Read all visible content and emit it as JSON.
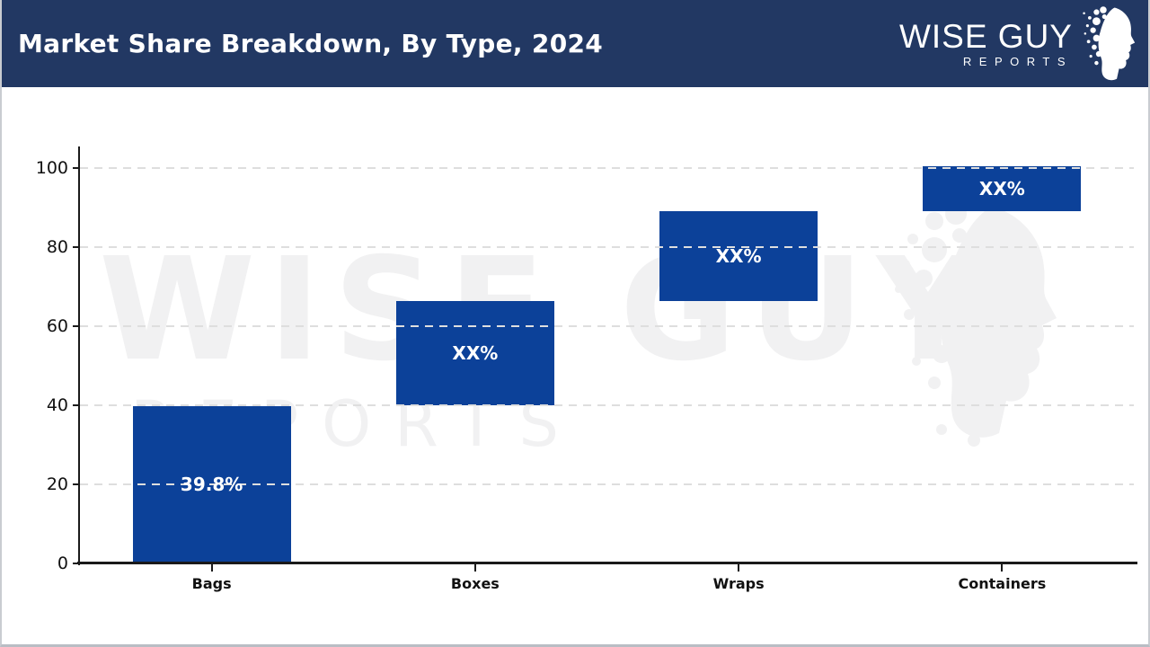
{
  "header": {
    "background": "#223863",
    "title": "Market Share Breakdown, By Type, 2024",
    "logo": {
      "brand_line1": "WISE GUY",
      "brand_line2": "REPORTS"
    }
  },
  "watermark": {
    "line1": "WISE GUY",
    "line2": "REPORTS",
    "color": "#f1f1f2"
  },
  "icons": {
    "logo_head": "wiseguy-dotted-head",
    "watermark_head": "wiseguy-dotted-head"
  },
  "chart_data": {
    "type": "bar",
    "variant": "waterfall",
    "title": "Market Share Breakdown, By Type, 2024",
    "categories": [
      "Bags",
      "Boxes",
      "Wraps",
      "Containers"
    ],
    "series": [
      {
        "name": "Market share (%)",
        "segments": [
          {
            "category": "Bags",
            "start": 0,
            "end": 39.8,
            "label": "39.8%"
          },
          {
            "category": "Boxes",
            "start": 40,
            "end": 66.4,
            "label": "XX%"
          },
          {
            "category": "Wraps",
            "start": 66.4,
            "end": 89.1,
            "label": "XX%"
          },
          {
            "category": "Containers",
            "start": 89.1,
            "end": 100.4,
            "label": "XX%"
          }
        ]
      }
    ],
    "xlabel": "",
    "ylabel": "",
    "yticks": [
      0,
      20,
      40,
      60,
      80,
      100
    ],
    "ylim": [
      0,
      105.5
    ],
    "grid": "horizontal-dashed-above-bars",
    "legend": "none",
    "bar_color": "#0c4199",
    "bar_label_color": "#ffffff",
    "axis_color": "#1a1a1a",
    "grid_color": "#dedede",
    "tick_label_color": "#111111"
  }
}
